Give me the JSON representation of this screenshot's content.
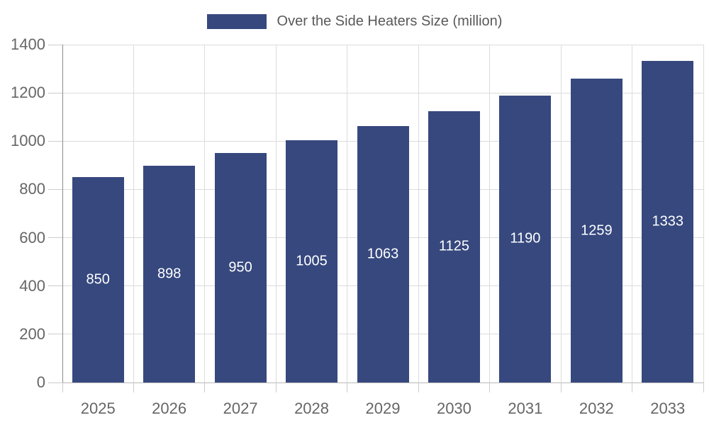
{
  "legend": {
    "label": "Over the Side Heaters Size (million)"
  },
  "chart_data": {
    "type": "bar",
    "title": "Over the Side Heaters Size (million)",
    "xlabel": "",
    "ylabel": "",
    "categories": [
      "2025",
      "2026",
      "2027",
      "2028",
      "2029",
      "2030",
      "2031",
      "2032",
      "2033"
    ],
    "values": [
      850,
      898,
      950,
      1005,
      1063,
      1125,
      1190,
      1259,
      1333
    ],
    "value_labels": [
      "850",
      "898",
      "950",
      "1005",
      "1063",
      "1125",
      "1190",
      "1259",
      "1333"
    ],
    "ylim": [
      0,
      1400
    ],
    "yticks": [
      0,
      200,
      400,
      600,
      800,
      1000,
      1200,
      1400
    ],
    "grid": true,
    "legend_position": "top",
    "colors": {
      "bar": "#36487e",
      "value_label": "#ffffff",
      "axis_text": "#666666",
      "legend_text": "#595959",
      "gridline": "#dcdcdc",
      "spine": "#8c8c8c",
      "axis_line": "#b8b8b8",
      "tick": "#cccccc",
      "background": "#ffffff"
    }
  }
}
